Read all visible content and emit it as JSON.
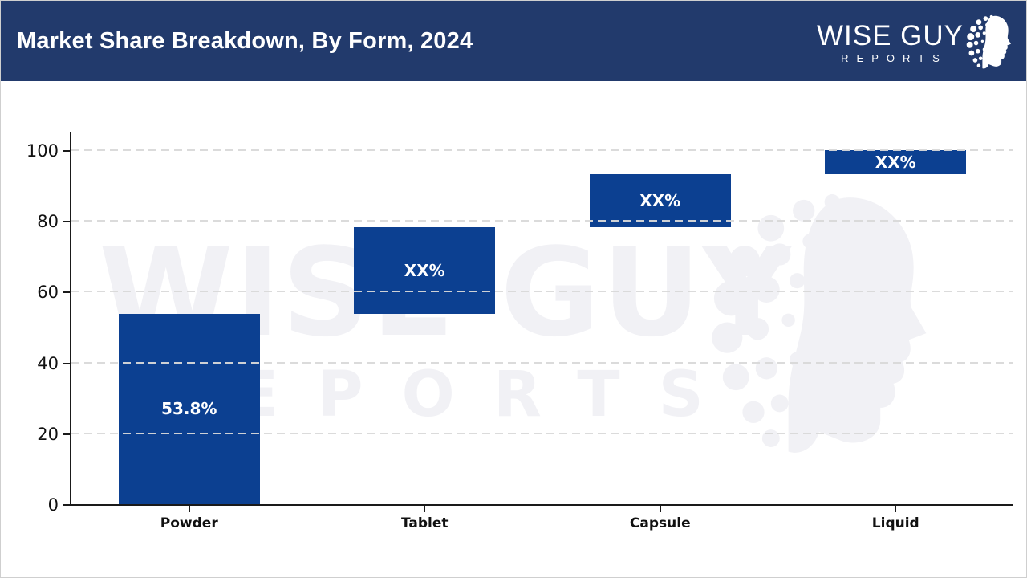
{
  "header": {
    "title": "Market Share Breakdown, By Form, 2024",
    "bg_color": "#223a6c",
    "logo": {
      "line1": "WISE GUY",
      "line2": "REPORTS"
    }
  },
  "watermark": {
    "line1": "WISE GUY",
    "line2": "REPORTS"
  },
  "chart_data": {
    "type": "bar",
    "subtype": "cumulative-waterfall",
    "title": "Market Share Breakdown, By Form, 2024",
    "categories": [
      "Powder",
      "Tablet",
      "Capsule",
      "Liquid"
    ],
    "series": [
      {
        "name": "Powder",
        "start": 0,
        "end": 53.8,
        "label": "53.8%"
      },
      {
        "name": "Tablet",
        "start": 53.8,
        "end": 78.3,
        "label": "XX%"
      },
      {
        "name": "Capsule",
        "start": 78.3,
        "end": 93.3,
        "label": "XX%"
      },
      {
        "name": "Liquid",
        "start": 93.3,
        "end": 100,
        "label": "XX%"
      }
    ],
    "xlabel": "",
    "ylabel": "",
    "ylim": [
      0,
      105
    ],
    "yticks": [
      0,
      20,
      40,
      60,
      80,
      100
    ],
    "grid": "horizontal-dashed-over-bars",
    "legend": "none",
    "bar_color": "#0c4091",
    "grid_color": "#d9d9d9",
    "axis_color": "#1a1a1a",
    "bar_label_color": "#ffffff"
  }
}
